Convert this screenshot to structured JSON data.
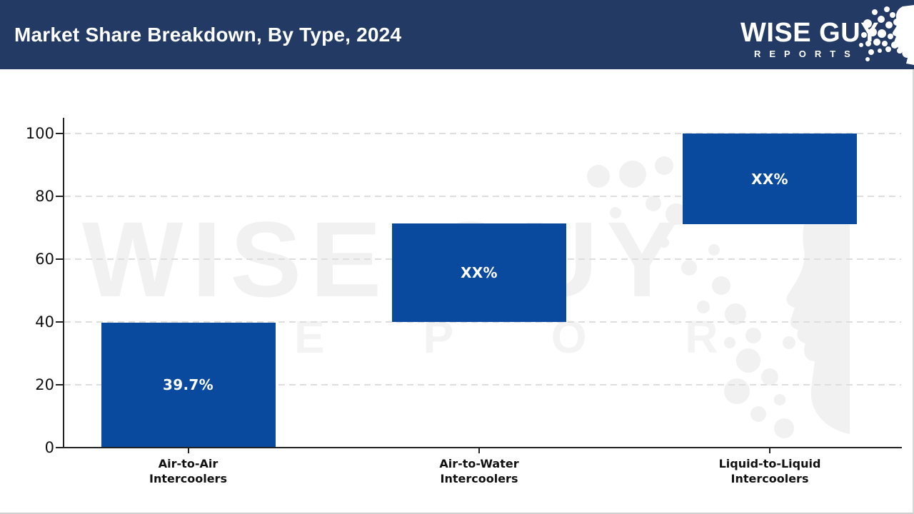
{
  "header": {
    "title": "Market Share Breakdown, By Type, 2024",
    "bg_color": "#223a64",
    "logo_line1": "WISE GUY",
    "logo_line2": "R E P O R T S"
  },
  "watermark": {
    "big_text": "WISE GUY",
    "small_text": "R E P O R T S"
  },
  "chart_data": {
    "type": "bar",
    "variant": "floating-range-bars (stacked breakdown)",
    "title": "Market Share Breakdown, By Type, 2024",
    "categories": [
      {
        "line1": "Air-to-Air",
        "line2": "Intercoolers"
      },
      {
        "line1": "Air-to-Water",
        "line2": "Intercoolers"
      },
      {
        "line1": "Liquid-to-Liquid",
        "line2": "Intercoolers"
      }
    ],
    "bars": [
      {
        "start": 0,
        "end": 39.7,
        "label": "39.7%"
      },
      {
        "start": 40,
        "end": 71.3,
        "label": "XX%"
      },
      {
        "start": 71.1,
        "end": 100,
        "label": "XX%"
      }
    ],
    "yticks": [
      "0",
      "20",
      "40",
      "60",
      "80",
      "100"
    ],
    "ylim": [
      0,
      105
    ],
    "grid": "horizontal-dashed",
    "legend": "none",
    "bar_color": "#0a4a9e",
    "label_color": "#ffffff",
    "axis_color": "#222222",
    "gridline_color": "#dedede"
  }
}
